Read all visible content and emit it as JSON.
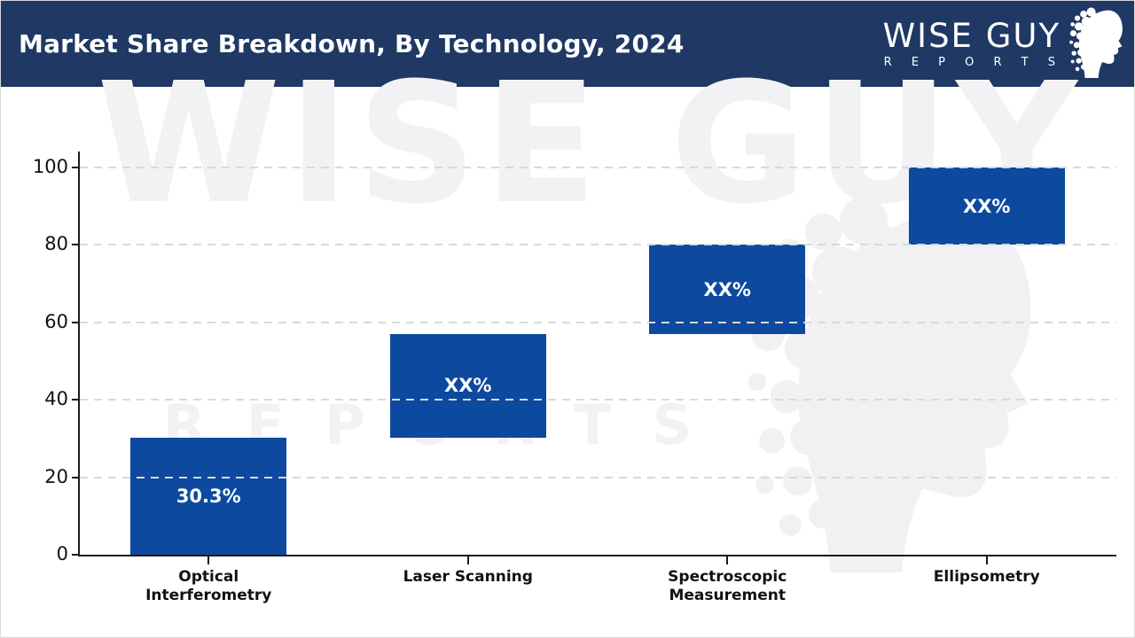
{
  "header": {
    "title": "Market Share Breakdown, By Technology, 2024",
    "logo": {
      "wordmark": "WISE GUY",
      "subtext": "R E P O R T S"
    }
  },
  "watermark": {
    "wordmark": "WISE GUY",
    "subtext": "REPORTS"
  },
  "colors": {
    "header_bg": "#1f3864",
    "bar": "#0d4a9f",
    "bar_label": "#ffffff",
    "gridline": "#d9d9d9",
    "watermark": "#f2f2f5"
  },
  "chart_data": {
    "type": "bar",
    "subtype": "waterfall",
    "title": "Market Share Breakdown, By Technology, 2024",
    "categories": [
      "Optical Interferometry",
      "Laser Scanning",
      "Spectroscopic Measurement",
      "Ellipsometry"
    ],
    "segments": [
      {
        "category": "Optical Interferometry",
        "label": "30.3%",
        "start": 0,
        "end": 30.3
      },
      {
        "category": "Laser Scanning",
        "label": "XX%",
        "start": 30.3,
        "end": 57
      },
      {
        "category": "Spectroscopic Measurement",
        "label": "XX%",
        "start": 57,
        "end": 80
      },
      {
        "category": "Ellipsometry",
        "label": "XX%",
        "start": 80,
        "end": 100
      }
    ],
    "xlabel": "",
    "ylabel": "",
    "yticks": [
      0,
      20,
      40,
      60,
      80,
      100
    ],
    "ylim": [
      0,
      105
    ],
    "grid": "horizontal-dashed",
    "legend": "none"
  }
}
